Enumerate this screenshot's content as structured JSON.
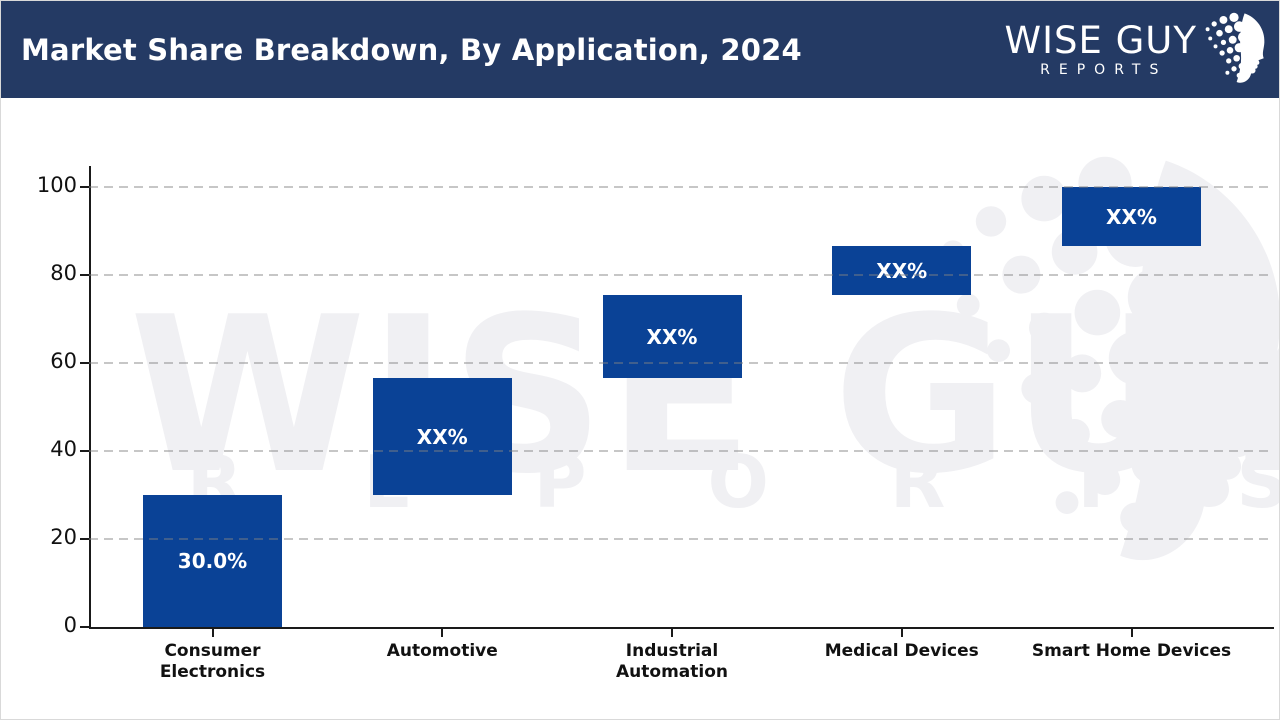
{
  "header": {
    "title": "Market Share Breakdown, By Application, 2024",
    "bg_color": "#243A64",
    "logo": {
      "line1": "WISE GUY",
      "line2": "REPORTS"
    }
  },
  "watermark": {
    "line1": "WISE GUY",
    "line2": "R E P O R T S"
  },
  "chart_data": {
    "type": "bar",
    "subtype": "waterfall",
    "title": "Market Share Breakdown, By Application, 2024",
    "categories": [
      [
        "Consumer",
        "Electronics"
      ],
      [
        "Automotive"
      ],
      [
        "Industrial",
        "Automation"
      ],
      [
        "Medical Devices"
      ],
      [
        "Smart Home Devices"
      ]
    ],
    "segments": [
      [
        0,
        30
      ],
      [
        30,
        56.5
      ],
      [
        56.5,
        75.5
      ],
      [
        75.5,
        86.5
      ],
      [
        86.5,
        100
      ]
    ],
    "values": [
      30,
      26.5,
      19,
      11,
      13.5
    ],
    "bar_labels": [
      "30.0%",
      "XX%",
      "XX%",
      "XX%",
      "XX%"
    ],
    "xlabel": "",
    "ylabel": "",
    "ylim": [
      0,
      100
    ],
    "yticks": [
      0,
      20,
      40,
      60,
      80,
      100
    ],
    "grid": "dashed-horizontal-over-bars",
    "legend": "none",
    "bar_color": "#0A4296",
    "bar_label_color": "#FFFFFF",
    "axis_color": "#1a1a1a"
  }
}
